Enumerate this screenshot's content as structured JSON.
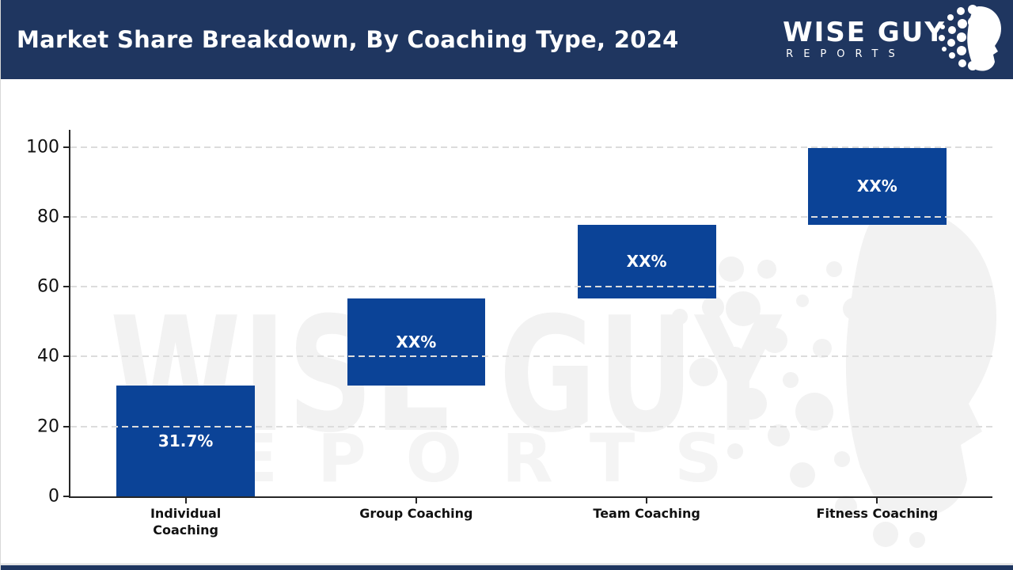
{
  "header": {
    "title": "Market Share Breakdown, By Coaching Type, 2024",
    "logo": {
      "line1": "WISE GUY",
      "line2": "REPORTS"
    }
  },
  "watermark": {
    "line1": "WISE GUY",
    "line2": "REPORTS"
  },
  "chart_data": {
    "type": "bar",
    "subtype": "waterfall",
    "title": "Market Share Breakdown, By Coaching Type, 2024",
    "xlabel": "",
    "ylabel": "",
    "categories": [
      {
        "label": "Individual Coaching",
        "lines": [
          "Individual",
          "Coaching"
        ]
      },
      {
        "label": "Group Coaching",
        "lines": [
          "Group Coaching"
        ]
      },
      {
        "label": "Team Coaching",
        "lines": [
          "Team Coaching"
        ]
      },
      {
        "label": "Fitness Coaching",
        "lines": [
          "Fitness Coaching"
        ]
      }
    ],
    "segments": [
      {
        "category": "Individual Coaching",
        "start": 0,
        "end": 31.7,
        "label": "31.7%",
        "value_shown": 31.7
      },
      {
        "category": "Group Coaching",
        "start": 31.7,
        "end": 56.7,
        "label": "XX%",
        "value_shown": null
      },
      {
        "category": "Team Coaching",
        "start": 56.7,
        "end": 77.7,
        "label": "XX%",
        "value_shown": null
      },
      {
        "category": "Fitness Coaching",
        "start": 77.7,
        "end": 99.8,
        "label": "XX%",
        "value_shown": null
      }
    ],
    "yticks": [
      0,
      20,
      40,
      60,
      80,
      100
    ],
    "ylim": [
      0,
      104
    ],
    "grid": "horizontal-dashed",
    "legend": "none",
    "colors": {
      "bar": "#0b4397",
      "bar_label": "#ffffff",
      "grid_line": "#dcdcdc",
      "axis": "#262626",
      "tick_text": "#111111",
      "header_bg": "#1f3660",
      "watermark": "#f2f2f2"
    }
  }
}
